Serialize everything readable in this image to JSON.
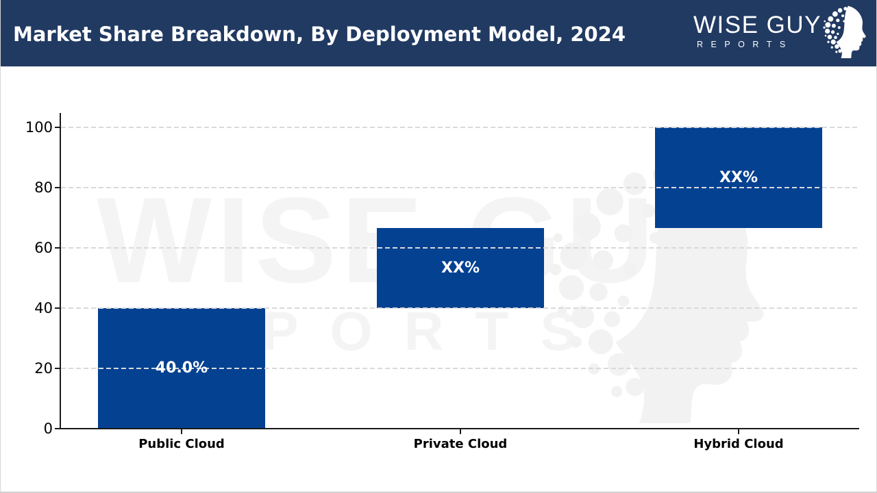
{
  "header": {
    "title": "Market Share Breakdown, By Deployment Model, 2024",
    "logo": {
      "line1": "WISE GUY",
      "line2": "REPORTS",
      "icon": "dotted-head-icon"
    }
  },
  "watermark": {
    "line1": "WISE GUY",
    "line2": "REPORTS",
    "icon": "dotted-head-icon"
  },
  "chart_data": {
    "type": "bar",
    "subtype": "floating-stacked-percentage",
    "title": "Market Share Breakdown, By Deployment Model, 2024",
    "categories": [
      "Public Cloud",
      "Private Cloud",
      "Hybrid Cloud"
    ],
    "segments": [
      {
        "category": "Public Cloud",
        "start": 0,
        "end": 40,
        "label": "40.0%"
      },
      {
        "category": "Private Cloud",
        "start": 40,
        "end": 66.5,
        "label": "XX%"
      },
      {
        "category": "Hybrid Cloud",
        "start": 66.5,
        "end": 100,
        "label": "XX%"
      }
    ],
    "yticks": [
      0,
      20,
      40,
      60,
      80,
      100
    ],
    "ylim": [
      0,
      100
    ],
    "xlabel": "",
    "ylabel": "",
    "grid": "dashed-horizontal",
    "legend": "none",
    "bar_color": "#054191",
    "value_label_color": "#ffffff",
    "header_color": "#213a62",
    "watermark_color": "#f4f4f4"
  }
}
